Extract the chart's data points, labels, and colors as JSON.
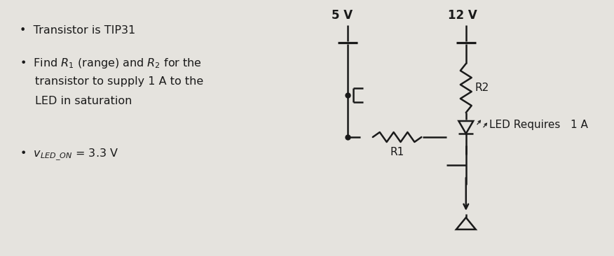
{
  "bg_color": "#e5e3de",
  "line_color": "#1a1a1a",
  "text_color": "#1a1a1a",
  "bullet1": "Transistor is TIP31",
  "bullet2_line1": "Find $R_1$ (range) and $R_2$ for the",
  "bullet2_line2": "transistor to supply 1 A to the",
  "bullet2_line3": "LED in saturation",
  "bullet3_pre": "v",
  "bullet3_sub": "LED_ON",
  "bullet3_post": " = 3.3 V",
  "label_5v": "5 V",
  "label_12v": "12 V",
  "label_R1": "R1",
  "label_R2": "R2",
  "label_LED": "LED Requires   1 A",
  "font_size_text": 11.5,
  "font_size_labels": 11,
  "font_size_volt": 12
}
